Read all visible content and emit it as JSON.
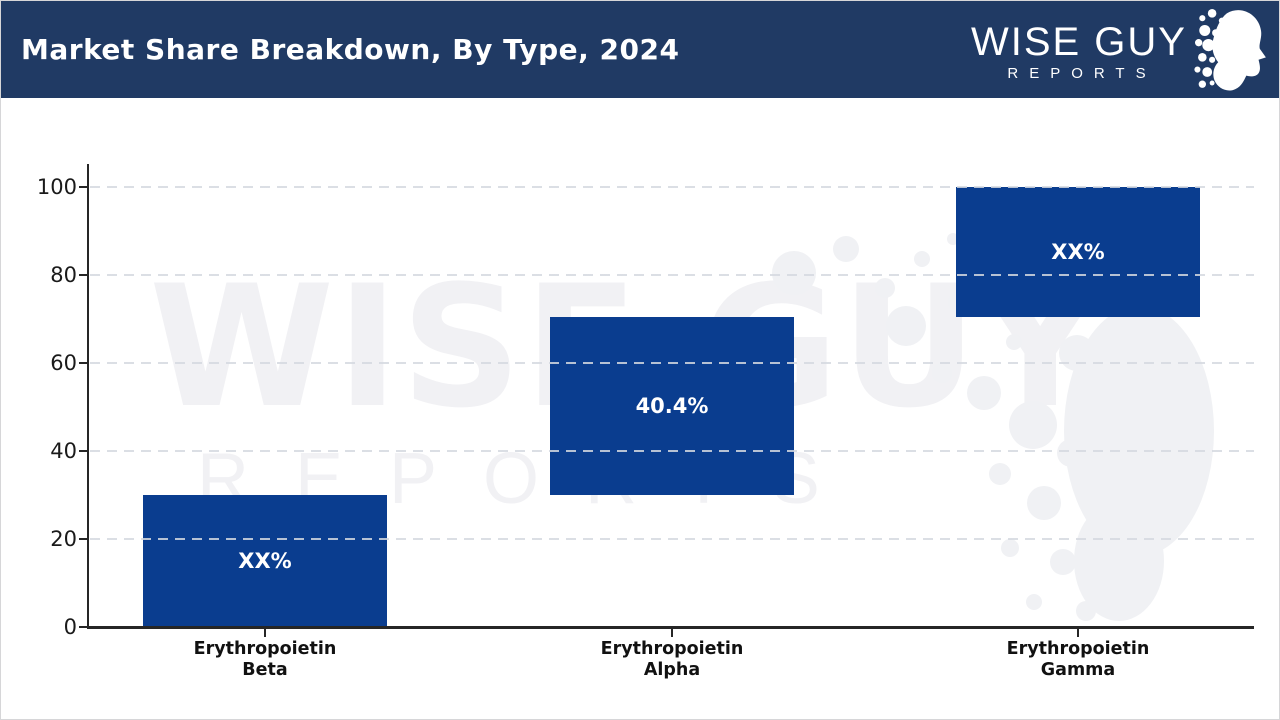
{
  "header": {
    "title": "Market Share Breakdown, By Type, 2024",
    "logo_line1": "WISE GUY",
    "logo_line2": "REPORTS"
  },
  "watermark": {
    "line1": "WISE GUY",
    "line2": "REPORTS"
  },
  "chart_data": {
    "type": "bar",
    "variant": "floating-waterfall",
    "title": "Market Share Breakdown, By Type, 2024",
    "categories": [
      [
        "Erythropoietin",
        "Beta"
      ],
      [
        "Erythropoietin",
        "Alpha"
      ],
      [
        "Erythropoietin",
        "Gamma"
      ]
    ],
    "bars": [
      {
        "start": 0,
        "end": 30,
        "label": "XX%"
      },
      {
        "start": 30,
        "end": 70.4,
        "label": "40.4%"
      },
      {
        "start": 70.4,
        "end": 100,
        "label": "XX%"
      }
    ],
    "yticks": [
      0,
      20,
      40,
      60,
      80,
      100
    ],
    "ylim": [
      0,
      105
    ],
    "xlabel": "",
    "ylabel": "",
    "legend": "none",
    "grid": {
      "axis": "y",
      "style": "dashed"
    },
    "colors": {
      "header_bg": "#203a64",
      "bar": "#0a3d8f",
      "bar_label": "#ffffff",
      "axis": "#262626",
      "grid": "rgba(213,217,224,0.85)",
      "watermark": "#f1f1f4"
    }
  }
}
